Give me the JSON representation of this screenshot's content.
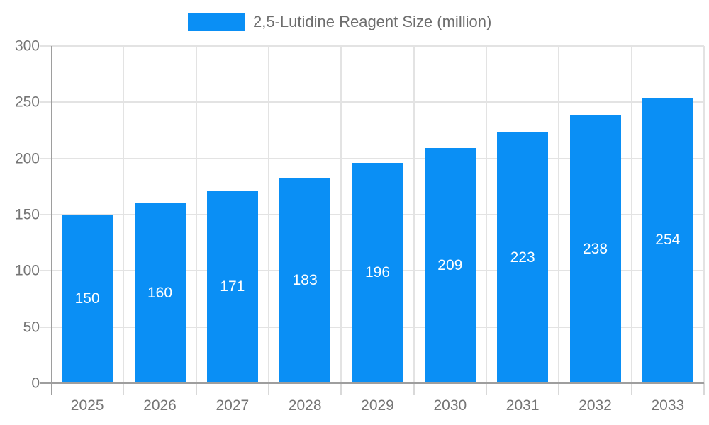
{
  "chart_data": {
    "type": "bar",
    "title": "",
    "legend_entries": [
      "2,5-Lutidine Reagent Size (million)"
    ],
    "legend_position": "top",
    "categories": [
      "2025",
      "2026",
      "2027",
      "2028",
      "2029",
      "2030",
      "2031",
      "2032",
      "2033"
    ],
    "values": [
      150,
      160,
      171,
      183,
      196,
      209,
      223,
      238,
      254
    ],
    "xlabel": "",
    "ylabel": "",
    "ylim": [
      0,
      300
    ],
    "yticks": [
      0,
      50,
      100,
      150,
      200,
      250,
      300
    ],
    "grid": true,
    "bar_labels_visible": true,
    "colors": {
      "bar": "#0a8ff5",
      "bar_label": "#ffffff",
      "axis_text": "#757575",
      "legend_text": "#6e6e6e",
      "grid": "#e3e3e3",
      "axis_line": "#9e9e9e",
      "tick": "#d9d9d9",
      "background": "#ffffff"
    }
  }
}
